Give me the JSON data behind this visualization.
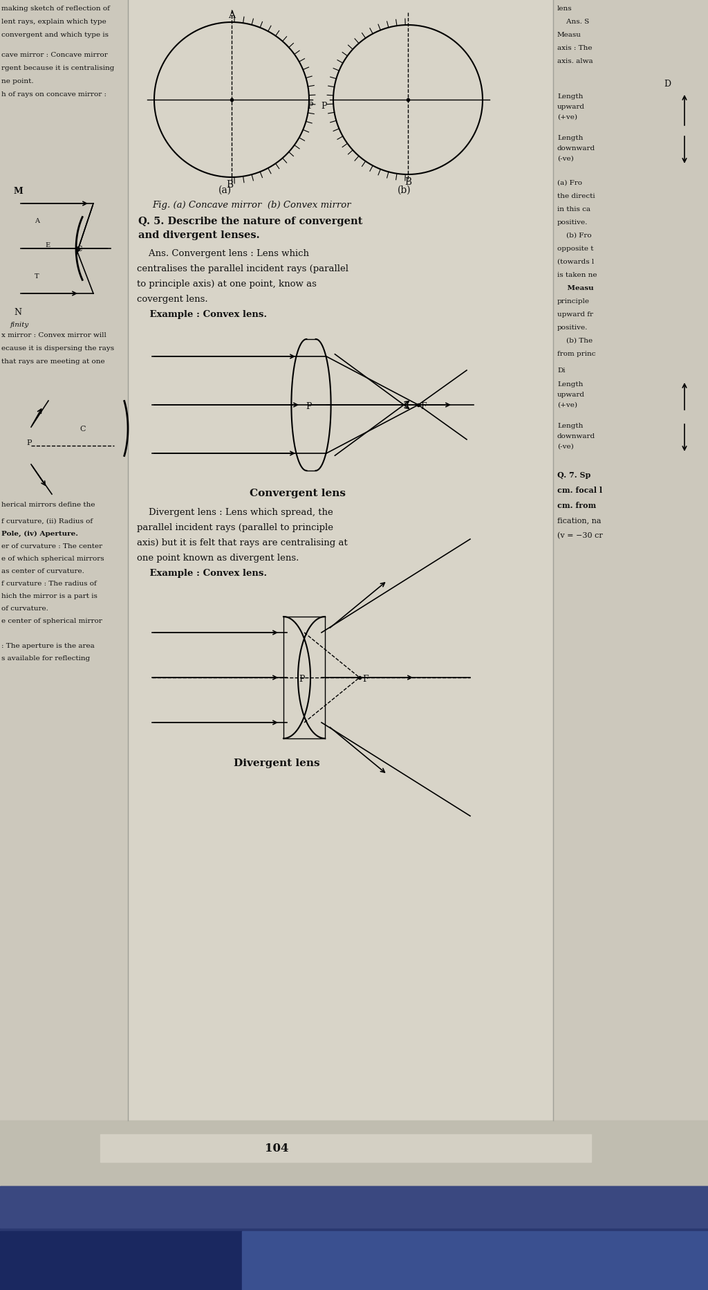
{
  "bg_light": "#d0cbbe",
  "bg_center": "#d8d4c8",
  "bg_left": "#c8c4b8",
  "bg_right": "#c8c4b8",
  "bg_bottom_bar": "#b8b4a8",
  "bg_blue": "#2a3a6a",
  "divider_color": "#a0a098",
  "text_color": "#111111",
  "page_number": "104",
  "title_fig": "Fig. (a) Concave mirror  (b) Convex mirror",
  "q5": "Q. 5. Describe the nature of convergent",
  "q5b": "and divergent lenses.",
  "ans_lines": [
    "    Ans. Convergent lens : Lens which",
    "centralises the parallel incident rays (parallel",
    "to principle axis) at one point, know as",
    "covergent lens."
  ],
  "example1": "    Example : Convex lens.",
  "convergent_label": "Convergent lens",
  "div_bold": "    Divergent lens : ",
  "div_lines": [
    "Lens which spread, the",
    "parallel incident rays (parallel to principle",
    "axis) but it is felt that rays are centralising at",
    "one point known as divergent lens."
  ],
  "example2": "    Example : Convex lens.",
  "divergent_label": "Divergent lens",
  "left_col1": [
    "making sketch of reflection of",
    "lent rays, explain which type",
    "convergent and which type is"
  ],
  "left_col2": [
    "cave mirror : Concave mirror",
    "rgent because it is centralising",
    "ne point.",
    "h of rays on concave mirror :"
  ],
  "left_col3": [
    "x mirror : Convex mirror will",
    "ecause it is dispersing the rays",
    "that rays are meeting at one"
  ],
  "left_col4": [
    "herical mirrors define the"
  ],
  "left_col5": [
    "f curvature, (ii) Radius of",
    "Pole, (iv) Aperture.",
    "er of curvature : The center",
    "e of which spherical mirrors",
    "as center of curvature.",
    "f curvature : The radius of",
    "hich the mirror is a part is",
    "of curvature.",
    "e center of spherical mirror",
    "",
    ": The aperture is the area",
    "s available for reflecting"
  ],
  "right_col1": [
    "lens",
    "    Ans. S",
    "Measu",
    "axis : The",
    "axis. alwa"
  ],
  "right_label_D": "D",
  "right_col2": [
    "(a) Fro",
    "the directi",
    "in this ca",
    "positive.",
    "    (b) Fro",
    "opposite t",
    "(towards l",
    "is taken ne",
    "    Measu",
    "principle",
    "upward fr",
    "positive.",
    "    (b) The",
    "from princ"
  ],
  "right_col3_Di": "Di",
  "right_col4": [
    "Q. 7. Sp",
    "cm. focal l",
    "cm. from",
    "fication, na",
    "(v = −30 cr"
  ]
}
